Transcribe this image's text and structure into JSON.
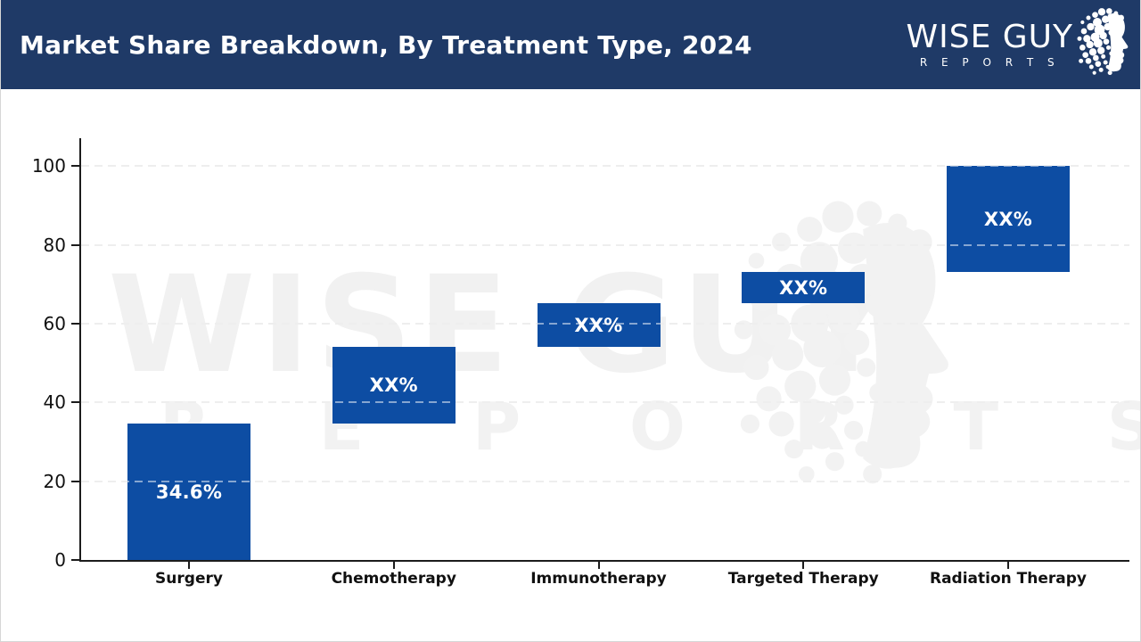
{
  "header": {
    "title": "Market Share Breakdown, By Treatment Type, 2024",
    "logo_name": "WISE GUY",
    "logo_sub": "R E P O R T S"
  },
  "watermark": {
    "line1": "WISE GUY",
    "line2": "R E P O R T S"
  },
  "colors": {
    "header_bg": "#1f3a67",
    "bar": "#0d4da3",
    "axis": "#1c1c1c",
    "grid": "#dcdcdc",
    "border": "#d6d6d6",
    "label_on_bar": "#ffffff"
  },
  "chart_data": {
    "type": "bar",
    "subtype": "waterfall",
    "title": "Market Share Breakdown, By Treatment Type, 2024",
    "categories": [
      "Surgery",
      "Chemotherapy",
      "Immunotherapy",
      "Targeted Therapy",
      "Radiation Therapy"
    ],
    "segments": [
      {
        "category": "Surgery",
        "start": 0,
        "end": 34.6,
        "label": "34.6%"
      },
      {
        "category": "Chemotherapy",
        "start": 34.6,
        "end": 54.1,
        "label": "XX%"
      },
      {
        "category": "Immunotherapy",
        "start": 54.1,
        "end": 65.2,
        "label": "XX%"
      },
      {
        "category": "Targeted Therapy",
        "start": 65.2,
        "end": 73.1,
        "label": "XX%"
      },
      {
        "category": "Radiation Therapy",
        "start": 73.1,
        "end": 100,
        "label": "XX%"
      }
    ],
    "y_ticks": [
      0,
      20,
      40,
      60,
      80,
      100
    ],
    "ylim": [
      0,
      107
    ],
    "xlabel": "",
    "ylabel": "",
    "grid": "horizontal-dashed",
    "legend": "none"
  }
}
